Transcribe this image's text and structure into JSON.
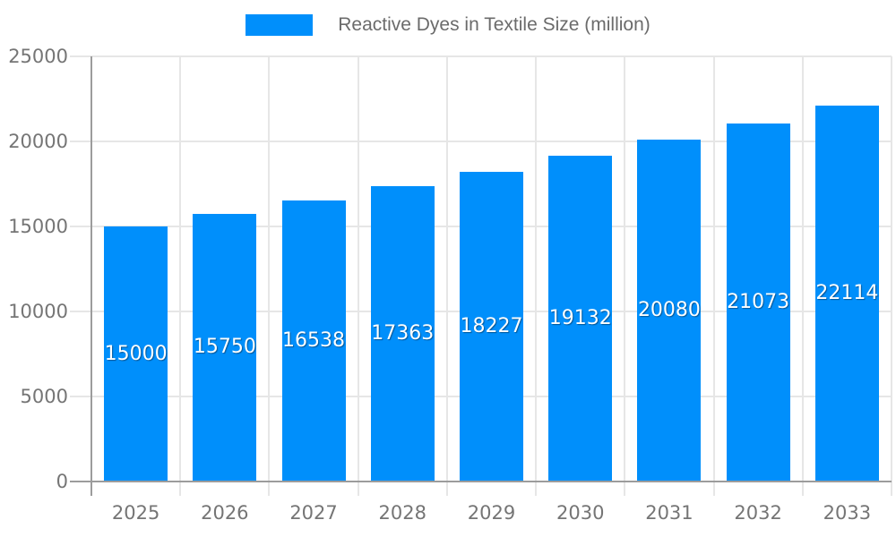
{
  "legend": {
    "label": "Reactive Dyes in Textile Size (million)"
  },
  "chart_data": {
    "type": "bar",
    "title": "Reactive Dyes in Textile Size (million)",
    "series_name": "Reactive Dyes in Textile Size (million)",
    "categories": [
      "2025",
      "2026",
      "2027",
      "2028",
      "2029",
      "2030",
      "2031",
      "2032",
      "2033"
    ],
    "values": [
      15000,
      15750,
      16538,
      17363,
      18227,
      19132,
      20080,
      21073,
      22114
    ],
    "data_labels": [
      "15000",
      "15750",
      "16538",
      "17363",
      "18227",
      "19132",
      "20080",
      "21073",
      "22114"
    ],
    "xlabel": "",
    "ylabel": "",
    "ylim": [
      0,
      25000
    ],
    "yticks": [
      0,
      5000,
      10000,
      15000,
      20000,
      25000
    ],
    "ytick_labels": [
      "0",
      "5000",
      "10000",
      "15000",
      "20000",
      "25000"
    ],
    "grid": true,
    "legend_position": "top-center",
    "data_label_position": "inside-center",
    "colors": {
      "bar": "#008FFB",
      "grid_line": "#E6E6E6",
      "axis_line": "#9C9C9C",
      "tick_text": "#757575",
      "legend_text": "#6B6B6B",
      "data_label_text": "#FFFFFF",
      "background": "#FFFFFF"
    }
  }
}
